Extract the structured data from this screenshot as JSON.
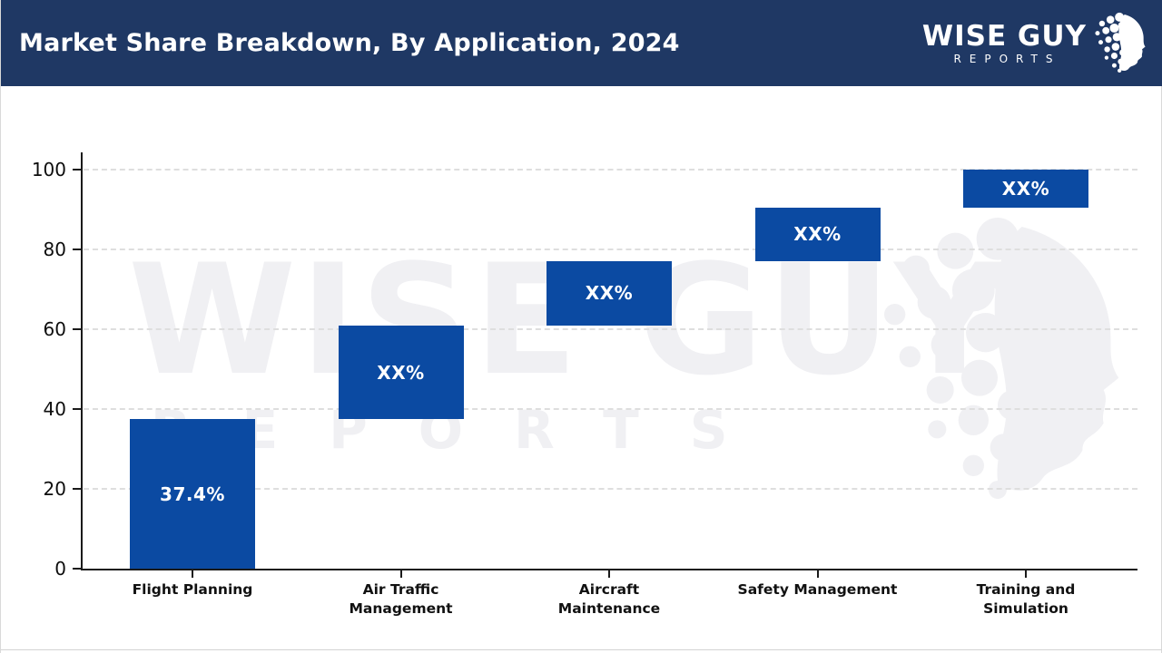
{
  "header": {
    "title": "Market Share Breakdown, By Application, 2024",
    "bg_color": "#1f3864",
    "logo": {
      "line1": "WISE GUY",
      "line2": "REPORTS"
    }
  },
  "watermark": {
    "line1": "WISE GUY",
    "line2": "REPORTS"
  },
  "chart_data": {
    "type": "bar",
    "subtype": "waterfall",
    "title": "Market Share Breakdown, By Application, 2024",
    "categories": [
      "Flight Planning",
      "Air Traffic Management",
      "Aircraft Maintenance",
      "Safety Management",
      "Training and Simulation"
    ],
    "category_label_lines": [
      [
        "Flight Planning"
      ],
      [
        "Air Traffic",
        "Management"
      ],
      [
        "Aircraft",
        "Maintenance"
      ],
      [
        "Safety Management"
      ],
      [
        "Training and",
        "Simulation"
      ]
    ],
    "bars": [
      {
        "category": "Flight Planning",
        "start": 0,
        "end": 37.4,
        "label": "37.4%"
      },
      {
        "category": "Air Traffic Management",
        "start": 37.4,
        "end": 61,
        "label": "XX%"
      },
      {
        "category": "Aircraft Maintenance",
        "start": 61,
        "end": 77,
        "label": "XX%"
      },
      {
        "category": "Safety Management",
        "start": 77,
        "end": 90.5,
        "label": "XX%"
      },
      {
        "category": "Training and Simulation",
        "start": 90.5,
        "end": 100,
        "label": "XX%"
      }
    ],
    "yticks": [
      0,
      20,
      40,
      60,
      80,
      100
    ],
    "ylim": [
      0,
      104
    ],
    "xlabel": "",
    "ylabel": "",
    "grid": "horizontal-dashed",
    "legend": "none",
    "bar_color": "#0b4aa2",
    "bar_label_color": "#ffffff",
    "axis_color": "#1a1a1a",
    "grid_color": "#dedede",
    "tick_label_color": "#0d0d0d"
  }
}
